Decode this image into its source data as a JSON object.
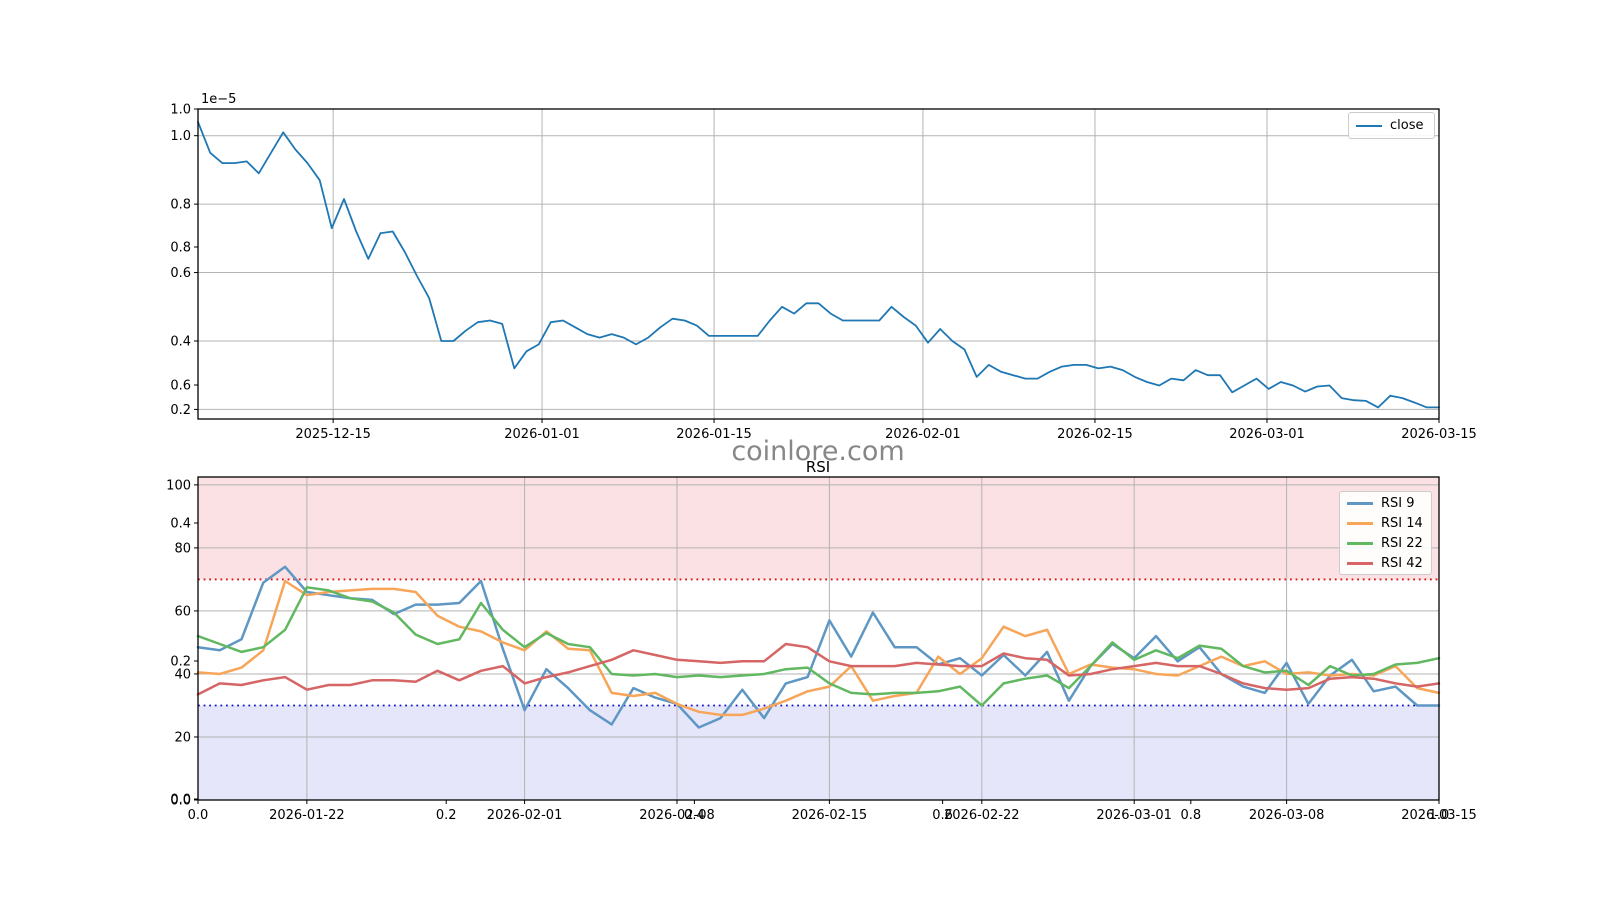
{
  "watermark": "coinlore.com",
  "figure_overlay_axis": {
    "x_tick_labels": [
      "0.0",
      "0.2",
      "0.4",
      "0.6",
      "0.8",
      "1.0"
    ],
    "y_tick_labels": [
      "0.0",
      "0.2",
      "0.4",
      "0.6",
      "0.8",
      "1.0"
    ]
  },
  "chart_data": [
    {
      "type": "line",
      "name": "price",
      "title": "",
      "y_offset_label": "1e−5",
      "x_start": "2025-12-04",
      "x_end": "2026-03-15",
      "x_tick_labels": [
        "2025-12-15",
        "2026-01-01",
        "2026-01-15",
        "2026-02-01",
        "2026-02-15",
        "2026-03-01",
        "2026-03-15"
      ],
      "y_ticks": [
        0.2,
        0.4,
        0.6,
        0.8,
        1.0
      ],
      "y_tick_labels": [
        "0.2",
        "0.4",
        "0.6",
        "0.8",
        "1.0"
      ],
      "ylim": [
        0.172,
        1.078
      ],
      "grid": true,
      "legend_position": "upper right",
      "series": [
        {
          "name": "close",
          "color": "#1f77b4",
          "values": [
            1.04,
            0.95,
            0.92,
            0.92,
            0.925,
            0.89,
            0.95,
            1.01,
            0.96,
            0.92,
            0.87,
            0.73,
            0.815,
            0.72,
            0.64,
            0.715,
            0.72,
            0.66,
            0.59,
            0.525,
            0.4,
            0.4,
            0.43,
            0.455,
            0.46,
            0.45,
            0.32,
            0.37,
            0.39,
            0.455,
            0.46,
            0.44,
            0.42,
            0.41,
            0.42,
            0.41,
            0.39,
            0.41,
            0.44,
            0.465,
            0.46,
            0.445,
            0.415,
            0.415,
            0.415,
            0.415,
            0.415,
            0.46,
            0.5,
            0.48,
            0.51,
            0.51,
            0.48,
            0.46,
            0.46,
            0.46,
            0.46,
            0.5,
            0.47,
            0.445,
            0.395,
            0.435,
            0.4,
            0.375,
            0.295,
            0.33,
            0.31,
            0.3,
            0.29,
            0.29,
            0.31,
            0.325,
            0.33,
            0.33,
            0.32,
            0.325,
            0.315,
            0.295,
            0.28,
            0.27,
            0.29,
            0.285,
            0.315,
            0.3,
            0.3,
            0.25,
            0.27,
            0.29,
            0.26,
            0.28,
            0.27,
            0.252,
            0.267,
            0.27,
            0.233,
            0.227,
            0.225,
            0.206,
            0.24,
            0.233,
            0.22,
            0.206,
            0.206
          ]
        }
      ]
    },
    {
      "type": "line",
      "name": "rsi",
      "title": "RSI",
      "x_start": "2026-01-17",
      "x_end": "2026-03-15",
      "x_tick_labels": [
        "2026-01-22",
        "2026-02-01",
        "2026-02-08",
        "2026-02-15",
        "2026-02-22",
        "2026-03-01",
        "2026-03-08",
        "2026-03-15"
      ],
      "y_ticks": [
        0,
        20,
        40,
        60,
        80,
        100
      ],
      "y_tick_labels": [
        "0.0",
        "20",
        "40",
        "60",
        "80",
        "100"
      ],
      "ylim": [
        0,
        102.5
      ],
      "grid": true,
      "overbought_level": 70,
      "oversold_level": 30,
      "bands": [
        {
          "from": 70,
          "to": 102.5,
          "color": "rgba(228,26,48,0.13)"
        },
        {
          "from": 0,
          "to": 30,
          "color": "rgba(51,51,221,0.12)"
        }
      ],
      "hlines": [
        {
          "value": 70,
          "color": "#dd1111",
          "style": "dotted"
        },
        {
          "value": 30,
          "color": "#1111cc",
          "style": "dotted"
        }
      ],
      "legend_position": "upper right",
      "series": [
        {
          "name": "RSI 9",
          "color": "#5e97c4",
          "values": [
            48.5,
            47.5,
            51,
            69,
            74,
            66,
            65,
            64,
            63.5,
            59,
            62,
            62,
            62.5,
            69.5,
            48,
            28.5,
            41.5,
            35.5,
            28.5,
            24,
            35.5,
            32.5,
            30.5,
            23,
            26,
            35,
            26,
            37,
            39,
            57,
            45.5,
            59.5,
            48.5,
            48.5,
            43,
            45,
            39.5,
            46,
            39.5,
            47,
            31.5,
            42.5,
            49.5,
            45,
            52,
            44,
            48.5,
            40,
            36,
            34,
            43.5,
            30.5,
            39.5,
            44.5,
            34.5,
            36,
            30,
            30
          ]
        },
        {
          "name": "RSI 14",
          "color": "#f7a558",
          "values": [
            40.5,
            40,
            42,
            47.5,
            69.5,
            65,
            66,
            66.5,
            67,
            67,
            66,
            58.5,
            55,
            53.5,
            50,
            47.5,
            53.5,
            48,
            47.5,
            34,
            33,
            34,
            30.5,
            28,
            27,
            27,
            29,
            31.5,
            34.5,
            36,
            42.5,
            31.5,
            33,
            34,
            45.5,
            40,
            45,
            55,
            52,
            54,
            40,
            43,
            42,
            41.5,
            40,
            39.5,
            42.5,
            45.5,
            42.5,
            44,
            40,
            40.5,
            39.5,
            40,
            39.5,
            42.5,
            35.5,
            34
          ]
        },
        {
          "name": "RSI 22",
          "color": "#61b861",
          "values": [
            52,
            49.5,
            47,
            48.5,
            54,
            67.5,
            66.5,
            64,
            63,
            59.5,
            52.5,
            49.5,
            51,
            62.5,
            54,
            48.5,
            53,
            49.5,
            48.5,
            40,
            39.5,
            40,
            39,
            39.5,
            39,
            39.5,
            40,
            41.5,
            42,
            37,
            34,
            33.5,
            34,
            34,
            34.5,
            36,
            30,
            37,
            38.5,
            39.5,
            35.5,
            42.5,
            50,
            44.5,
            47.5,
            45,
            49,
            48,
            42.5,
            40.5,
            41,
            36.5,
            42.5,
            39.5,
            40,
            43,
            43.5,
            45
          ]
        },
        {
          "name": "RSI 42",
          "color": "#d66565",
          "values": [
            33.5,
            37,
            36.5,
            38,
            39,
            35,
            36.5,
            36.5,
            38,
            38,
            37.5,
            41,
            38,
            41,
            42.5,
            37,
            39,
            40.5,
            42.5,
            44.5,
            47.5,
            46,
            44.5,
            44,
            43.5,
            44,
            44,
            49.5,
            48.5,
            44,
            42.5,
            42.5,
            42.5,
            43.5,
            43,
            42.5,
            42.5,
            46.5,
            45,
            44.5,
            39.5,
            40,
            41.5,
            42.5,
            43.5,
            42.5,
            42.5,
            40,
            37,
            35.5,
            35,
            35.5,
            38.5,
            39,
            38.5,
            37,
            36,
            37
          ]
        }
      ]
    }
  ]
}
